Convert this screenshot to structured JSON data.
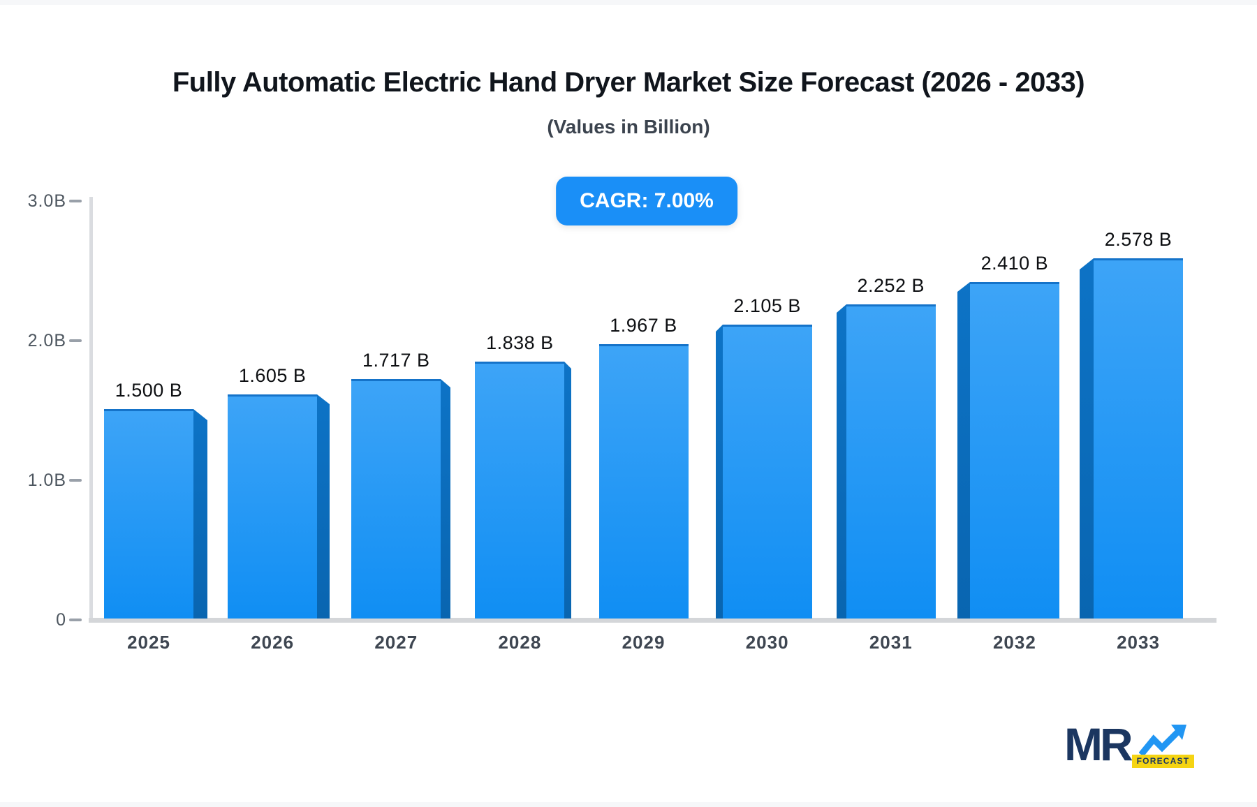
{
  "header": {
    "title": "Fully Automatic Electric Hand Dryer Market Size Forecast (2026 - 2033)",
    "subtitle": "(Values in Billion)",
    "cagr_badge": "CAGR: 7.00%"
  },
  "chart_data": {
    "type": "bar",
    "title": "Fully Automatic Electric Hand Dryer Market Size Forecast (2026 - 2033)",
    "subtitle": "(Values in Billion)",
    "annotation": "CAGR: 7.00%",
    "unit": "Billion",
    "categories": [
      "2025",
      "2026",
      "2027",
      "2028",
      "2029",
      "2030",
      "2031",
      "2032",
      "2033"
    ],
    "values": [
      1.5,
      1.605,
      1.717,
      1.838,
      1.967,
      2.105,
      2.252,
      2.41,
      2.578
    ],
    "bar_labels": [
      "1.500 B",
      "1.605 B",
      "1.717 B",
      "1.838 B",
      "1.967 B",
      "2.105 B",
      "2.252 B",
      "2.410 B",
      "2.578 B"
    ],
    "y_ticks": [
      {
        "label": "3.0B",
        "value": 3.0
      },
      {
        "label": "2.0B",
        "value": 2.0
      },
      {
        "label": "1.0B",
        "value": 1.0
      },
      {
        "label": "0",
        "value": 0
      }
    ],
    "ylim": [
      0,
      3.0
    ],
    "grid": "off",
    "legend": "none",
    "colors": {
      "bar_face_top": "#3da4f7",
      "bar_face_bottom": "#108ef3",
      "bar_face_border": "#1573c9",
      "bar_side_top": "#0d73c6",
      "bar_side_bottom": "#0965b0",
      "badge_background": "#1a8ff7",
      "badge_text": "#ffffff"
    }
  },
  "branding": {
    "logo_main": "MR",
    "logo_sub": "FORECAST",
    "logo_navy": "#1b3660",
    "logo_yellow": "#f5d413",
    "logo_arrow_blue": "#2196f3"
  }
}
